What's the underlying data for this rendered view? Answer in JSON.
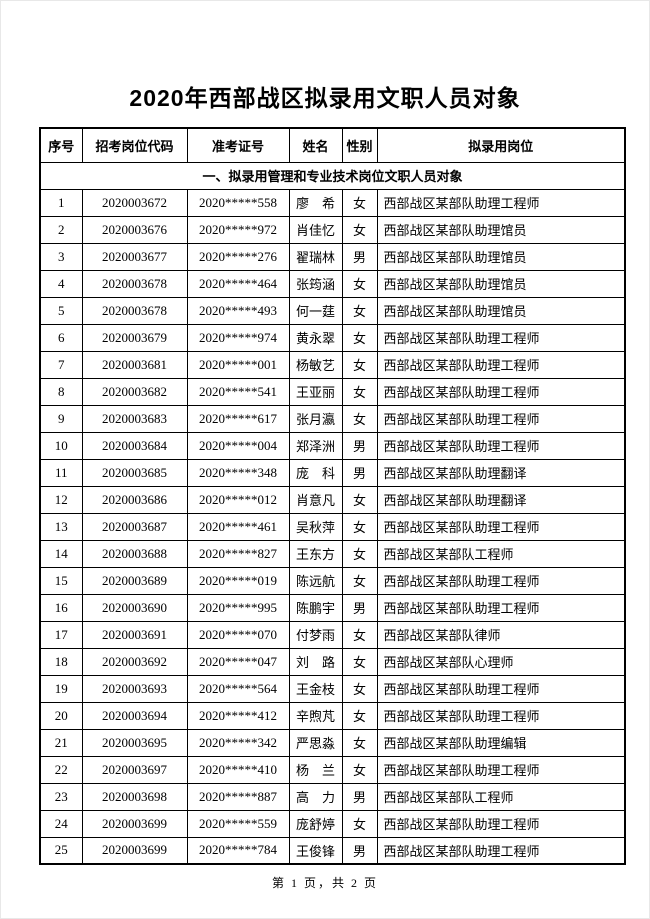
{
  "title": "2020年西部战区拟录用文职人员对象",
  "table": {
    "headers": [
      "序号",
      "招考岗位代码",
      "准考证号",
      "姓名",
      "性别",
      "拟录用岗位"
    ],
    "section_title": "一、拟录用管理和专业技术岗位文职人员对象",
    "rows": [
      {
        "no": "1",
        "job_code": "2020003672",
        "ticket_no": "2020*****558",
        "name": "廖　希",
        "gender": "女",
        "position": "西部战区某部队助理工程师"
      },
      {
        "no": "2",
        "job_code": "2020003676",
        "ticket_no": "2020*****972",
        "name": "肖佳忆",
        "gender": "女",
        "position": "西部战区某部队助理馆员"
      },
      {
        "no": "3",
        "job_code": "2020003677",
        "ticket_no": "2020*****276",
        "name": "翟瑞林",
        "gender": "男",
        "position": "西部战区某部队助理馆员"
      },
      {
        "no": "4",
        "job_code": "2020003678",
        "ticket_no": "2020*****464",
        "name": "张筠涵",
        "gender": "女",
        "position": "西部战区某部队助理馆员"
      },
      {
        "no": "5",
        "job_code": "2020003678",
        "ticket_no": "2020*****493",
        "name": "何一莛",
        "gender": "女",
        "position": "西部战区某部队助理馆员"
      },
      {
        "no": "6",
        "job_code": "2020003679",
        "ticket_no": "2020*****974",
        "name": "黄永翠",
        "gender": "女",
        "position": "西部战区某部队助理工程师"
      },
      {
        "no": "7",
        "job_code": "2020003681",
        "ticket_no": "2020*****001",
        "name": "杨敏艺",
        "gender": "女",
        "position": "西部战区某部队助理工程师"
      },
      {
        "no": "8",
        "job_code": "2020003682",
        "ticket_no": "2020*****541",
        "name": "王亚丽",
        "gender": "女",
        "position": "西部战区某部队助理工程师"
      },
      {
        "no": "9",
        "job_code": "2020003683",
        "ticket_no": "2020*****617",
        "name": "张月瀛",
        "gender": "女",
        "position": "西部战区某部队助理工程师"
      },
      {
        "no": "10",
        "job_code": "2020003684",
        "ticket_no": "2020*****004",
        "name": "郑泽洲",
        "gender": "男",
        "position": "西部战区某部队助理工程师"
      },
      {
        "no": "11",
        "job_code": "2020003685",
        "ticket_no": "2020*****348",
        "name": "庞　科",
        "gender": "男",
        "position": "西部战区某部队助理翻译"
      },
      {
        "no": "12",
        "job_code": "2020003686",
        "ticket_no": "2020*****012",
        "name": "肖意凡",
        "gender": "女",
        "position": "西部战区某部队助理翻译"
      },
      {
        "no": "13",
        "job_code": "2020003687",
        "ticket_no": "2020*****461",
        "name": "吴秋萍",
        "gender": "女",
        "position": "西部战区某部队助理工程师"
      },
      {
        "no": "14",
        "job_code": "2020003688",
        "ticket_no": "2020*****827",
        "name": "王东方",
        "gender": "女",
        "position": "西部战区某部队工程师"
      },
      {
        "no": "15",
        "job_code": "2020003689",
        "ticket_no": "2020*****019",
        "name": "陈远航",
        "gender": "女",
        "position": "西部战区某部队助理工程师"
      },
      {
        "no": "16",
        "job_code": "2020003690",
        "ticket_no": "2020*****995",
        "name": "陈鹏宇",
        "gender": "男",
        "position": "西部战区某部队助理工程师"
      },
      {
        "no": "17",
        "job_code": "2020003691",
        "ticket_no": "2020*****070",
        "name": "付梦雨",
        "gender": "女",
        "position": "西部战区某部队律师"
      },
      {
        "no": "18",
        "job_code": "2020003692",
        "ticket_no": "2020*****047",
        "name": "刘　路",
        "gender": "女",
        "position": "西部战区某部队心理师"
      },
      {
        "no": "19",
        "job_code": "2020003693",
        "ticket_no": "2020*****564",
        "name": "王金枝",
        "gender": "女",
        "position": "西部战区某部队助理工程师"
      },
      {
        "no": "20",
        "job_code": "2020003694",
        "ticket_no": "2020*****412",
        "name": "辛煦芃",
        "gender": "女",
        "position": "西部战区某部队助理工程师"
      },
      {
        "no": "21",
        "job_code": "2020003695",
        "ticket_no": "2020*****342",
        "name": "严思淼",
        "gender": "女",
        "position": "西部战区某部队助理编辑"
      },
      {
        "no": "22",
        "job_code": "2020003697",
        "ticket_no": "2020*****410",
        "name": "杨　兰",
        "gender": "女",
        "position": "西部战区某部队助理工程师"
      },
      {
        "no": "23",
        "job_code": "2020003698",
        "ticket_no": "2020*****887",
        "name": "高　力",
        "gender": "男",
        "position": "西部战区某部队工程师"
      },
      {
        "no": "24",
        "job_code": "2020003699",
        "ticket_no": "2020*****559",
        "name": "庞舒婷",
        "gender": "女",
        "position": "西部战区某部队助理工程师"
      },
      {
        "no": "25",
        "job_code": "2020003699",
        "ticket_no": "2020*****784",
        "name": "王俊锋",
        "gender": "男",
        "position": "西部战区某部队助理工程师"
      }
    ]
  },
  "footer": {
    "page_text": "第 1 页，共 2 页"
  }
}
